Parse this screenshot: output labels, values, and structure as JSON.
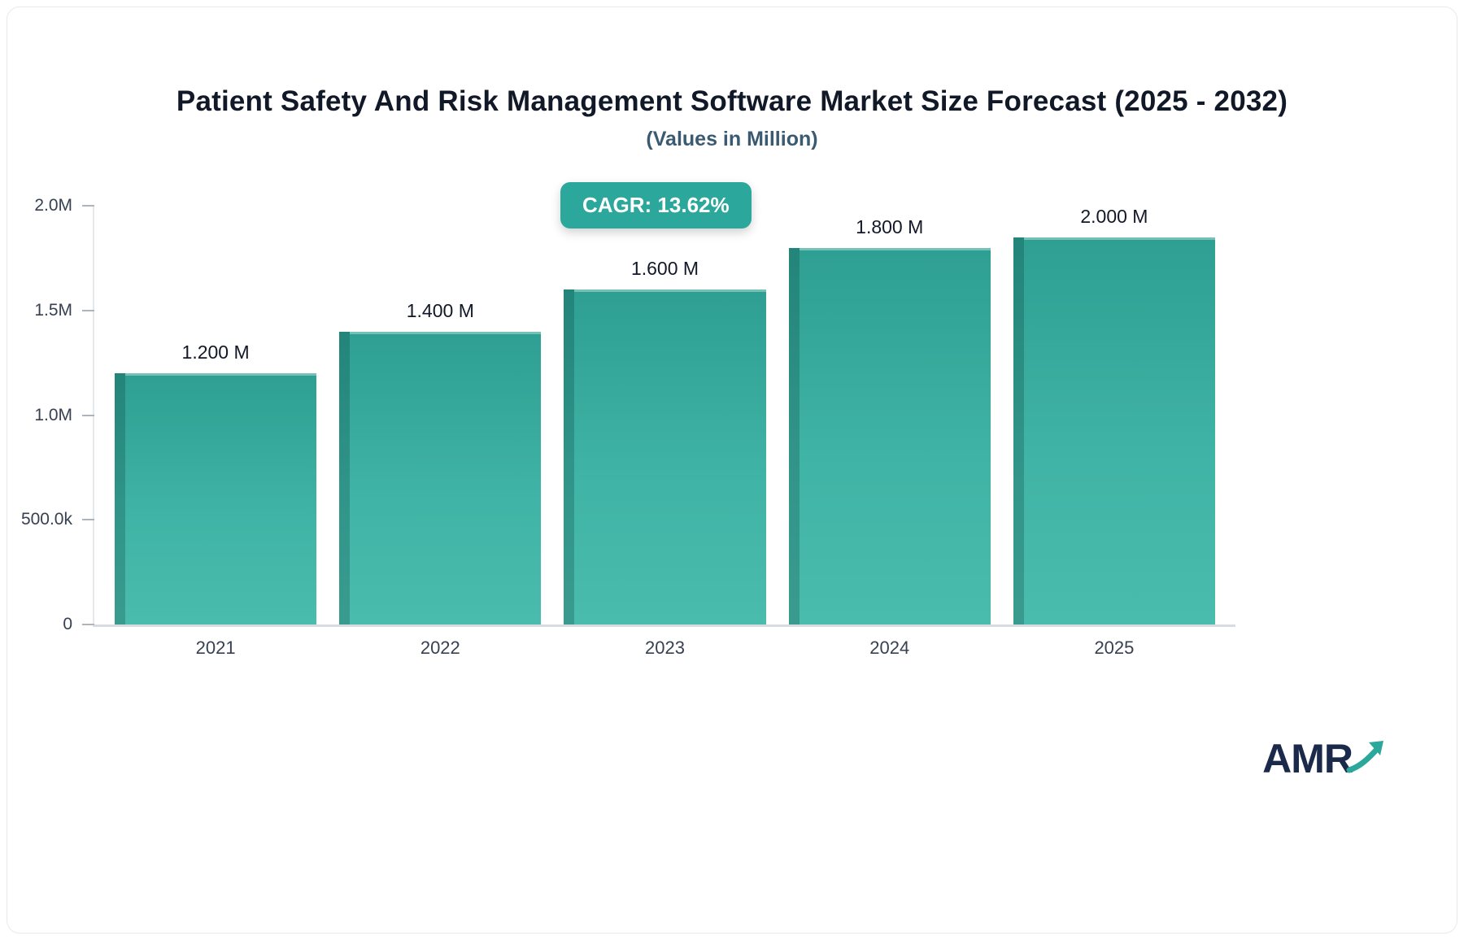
{
  "chart_data": {
    "type": "bar",
    "title": "Patient Safety And Risk Management Software Market Size Forecast (2025 - 2032)",
    "subtitle": "(Values in Million)",
    "categories": [
      "2021",
      "2022",
      "2023",
      "2024",
      "2025"
    ],
    "values": [
      1200000,
      1400000,
      1600000,
      1800000,
      2000000
    ],
    "value_labels": [
      "1.200 M",
      "1.400 M",
      "1.600 M",
      "1.800 M",
      "2.000 M"
    ],
    "ylim": [
      0,
      2000000
    ],
    "ytick_values": [
      2000000,
      1500000,
      1000000,
      500000,
      0
    ],
    "ytick_labels": [
      "2.0M",
      "1.5M",
      "1.0M",
      "500.0k",
      "0"
    ],
    "grid": false,
    "legend": false,
    "annotations": [
      {
        "label": "CAGR: 13.62%",
        "position": "above-2023-bar"
      }
    ]
  },
  "badge": {
    "label": "CAGR: 13.62%"
  },
  "branding": {
    "logo_text": "AMR"
  },
  "colors": {
    "bar": "#3AAFA0",
    "bar_edge_dark": "#1F8E81",
    "badge_bg": "#2BA89B",
    "title": "#111827",
    "subtitle": "#3A5A72",
    "logo_text": "#1B2A4A",
    "logo_arrow": "#2BA89B"
  }
}
